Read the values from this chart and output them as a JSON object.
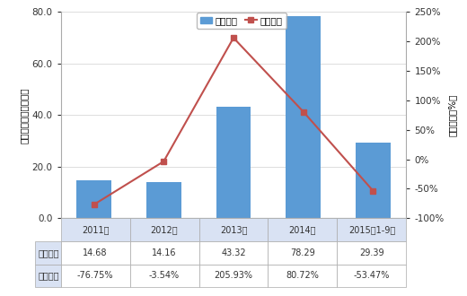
{
  "categories": [
    "2011年",
    "2012年",
    "2013年",
    "2014年",
    "2015年1-9月"
  ],
  "import_values": [
    14.68,
    14.16,
    43.32,
    78.29,
    29.39
  ],
  "growth_rates": [
    -76.75,
    -3.54,
    205.93,
    80.72,
    -53.47
  ],
  "bar_color": "#5B9BD5",
  "line_color": "#C0504D",
  "marker_color": "#C0504D",
  "left_ylabel": "进口金额（百万美元）",
  "right_ylabel": "同比增长（%）",
  "left_ylim": [
    0,
    80
  ],
  "right_ylim": [
    -100,
    250
  ],
  "left_yticks": [
    0.0,
    20.0,
    40.0,
    60.0,
    80.0
  ],
  "right_yticks": [
    -100,
    -50,
    0,
    50,
    100,
    150,
    200,
    250
  ],
  "right_yticklabels": [
    "-100%",
    "-50%",
    "0%",
    "50%",
    "100%",
    "150%",
    "200%",
    "250%"
  ],
  "legend_bar_label": "进口金额",
  "legend_line_label": "同比增长",
  "table_row1_label": "进口金额",
  "table_row2_label": "同比增长",
  "table_row1_values": [
    "14.68",
    "14.16",
    "43.32",
    "78.29",
    "29.39"
  ],
  "table_row2_values": [
    "-76.75%",
    "-3.54%",
    "205.93%",
    "80.72%",
    "-53.47%"
  ],
  "background_color": "#ffffff",
  "grid_color": "#dddddd",
  "axis_fontsize": 7.5,
  "table_fontsize": 7,
  "bar_width": 0.5,
  "table_header_color": "#D9E2F3",
  "table_cell_color": "#ffffff"
}
